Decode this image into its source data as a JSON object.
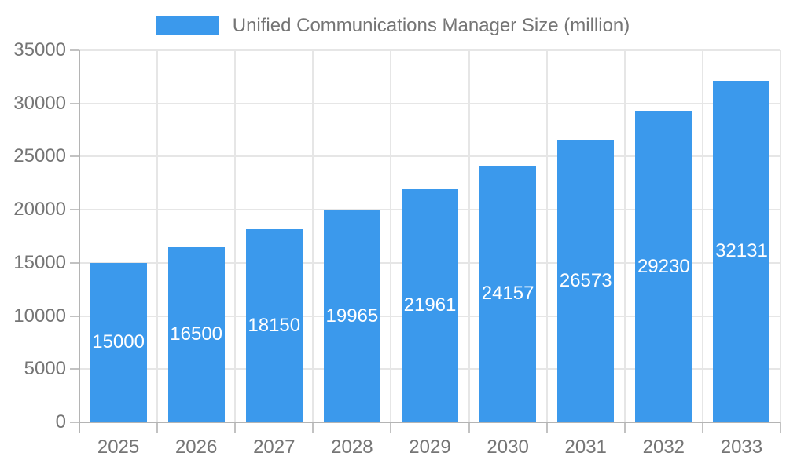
{
  "legend": {
    "label": "Unified Communications Manager Size (million)"
  },
  "chart_data": {
    "type": "bar",
    "title": "Unified Communications Manager Size (million)",
    "categories": [
      "2025",
      "2026",
      "2027",
      "2028",
      "2029",
      "2030",
      "2031",
      "2032",
      "2033"
    ],
    "values": [
      15000,
      16500,
      18150,
      19965,
      21961,
      24157,
      26573,
      29230,
      32131
    ],
    "bar_value_labels": [
      "15000",
      "16500",
      "18150",
      "19965",
      "21961",
      "24157",
      "26573",
      "29230",
      "32131"
    ],
    "xlabel": "",
    "ylabel": "",
    "ylim": [
      0,
      35000
    ],
    "ytick_step": 5000,
    "ytick_labels": [
      "0",
      "5000",
      "10000",
      "15000",
      "20000",
      "25000",
      "30000",
      "35000"
    ],
    "grid": true,
    "legend_position": "top",
    "colors": {
      "bar": "#3B99EC",
      "bar_label_text": "#FFFFFF",
      "axis_text": "#757575",
      "grid_line": "#E6E6E6",
      "axis_line": "#B4B4B4",
      "tick_mark": "#C2C2C2"
    }
  }
}
